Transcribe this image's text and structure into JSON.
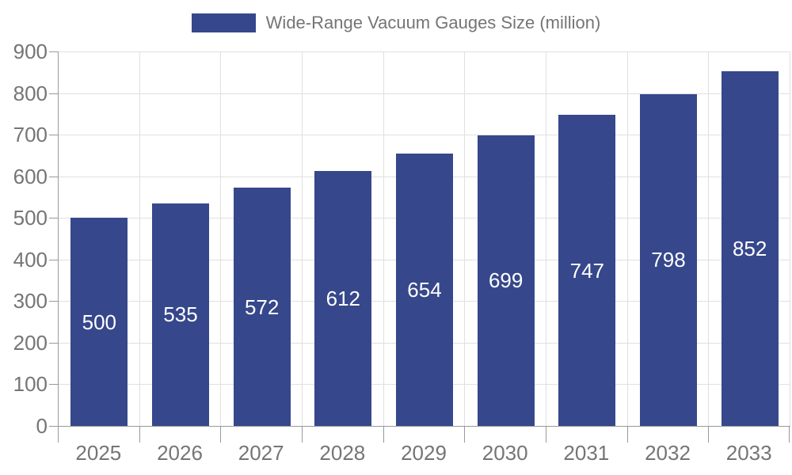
{
  "legend": {
    "label": "Wide-Range Vacuum Gauges Size (million)"
  },
  "chart_data": {
    "type": "bar",
    "title": "Wide-Range Vacuum Gauges Size (million)",
    "series_name": "Wide-Range Vacuum Gauges Size (million)",
    "categories": [
      "2025",
      "2026",
      "2027",
      "2028",
      "2029",
      "2030",
      "2031",
      "2032",
      "2033"
    ],
    "values": [
      500,
      535,
      572,
      612,
      654,
      699,
      747,
      798,
      852
    ],
    "xlabel": "",
    "ylabel": "",
    "ylim": [
      0,
      900
    ],
    "yticks": [
      0,
      100,
      200,
      300,
      400,
      500,
      600,
      700,
      800,
      900
    ],
    "grid": true,
    "legend_position": "top",
    "bar_color": "#36478B",
    "value_label_color": "#ffffff",
    "axis_color": "#999999",
    "grid_color": "#e0e0e0",
    "text_color": "#757575"
  }
}
